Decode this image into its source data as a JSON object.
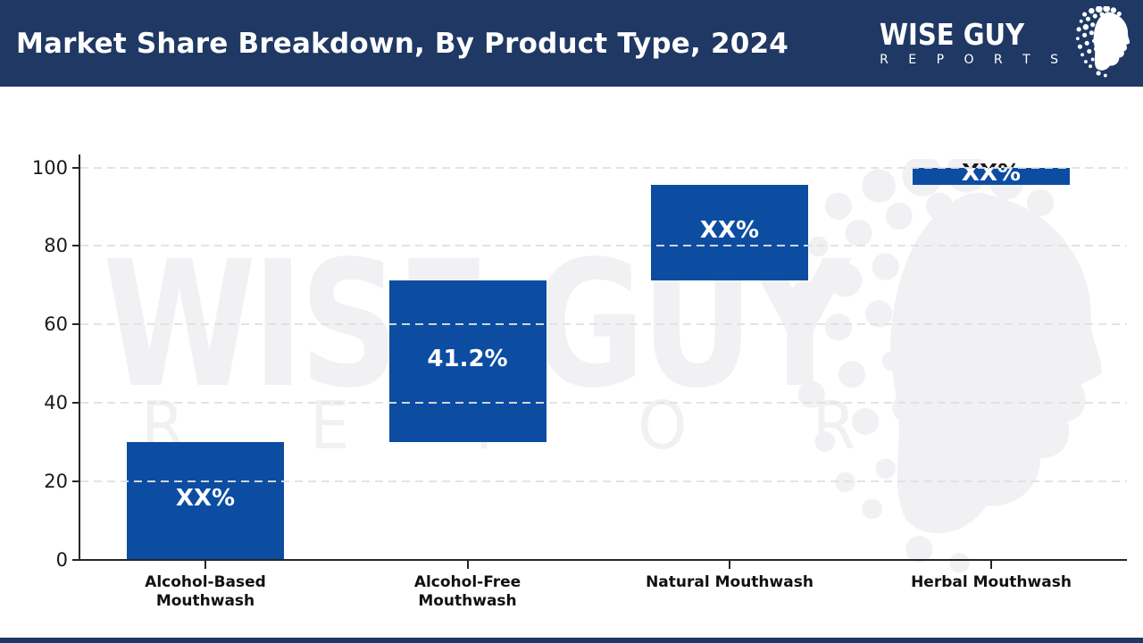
{
  "header": {
    "title": "Market Share Breakdown, By Product Type, 2024",
    "brand_wordmark": "WISE GUY",
    "brand_reports": "R E P O R T S"
  },
  "watermark": {
    "wordmark": "WISE GUY",
    "reports": "R E P O R T S"
  },
  "colors": {
    "header_bg": "#1f3864",
    "bar": "#0c4da2",
    "axis": "#262626",
    "gridline": "#e1e1e1",
    "watermark": "#f1f1f4",
    "bar_label": "#ffffff",
    "title_text": "#ffffff"
  },
  "chart_data": {
    "type": "bar",
    "variant": "stacked-waterfall",
    "title": "Market Share Breakdown, By Product Type, 2024",
    "xlabel": "",
    "ylabel": "",
    "ylim": [
      0,
      100
    ],
    "yticks": [
      0,
      20,
      40,
      60,
      80,
      100
    ],
    "grid": "horizontal-dashed",
    "legend": "none",
    "categories": [
      "Alcohol-Based Mouthwash",
      "Alcohol-Free Mouthwash",
      "Natural Mouthwash",
      "Herbal Mouthwash"
    ],
    "bars": [
      {
        "category_lines": [
          "Alcohol-Based",
          "Mouthwash"
        ],
        "start": 0,
        "end": 30,
        "value": 30,
        "label": "XX%"
      },
      {
        "category_lines": [
          "Alcohol-Free",
          "Mouthwash"
        ],
        "start": 30,
        "end": 71.2,
        "value": 41.2,
        "label": "41.2%"
      },
      {
        "category_lines": [
          "Natural Mouthwash"
        ],
        "start": 71.2,
        "end": 95.5,
        "value": 24.3,
        "label": "XX%"
      },
      {
        "category_lines": [
          "Herbal Mouthwash"
        ],
        "start": 95.5,
        "end": 100,
        "value": 4.5,
        "label": "XX%"
      }
    ]
  }
}
